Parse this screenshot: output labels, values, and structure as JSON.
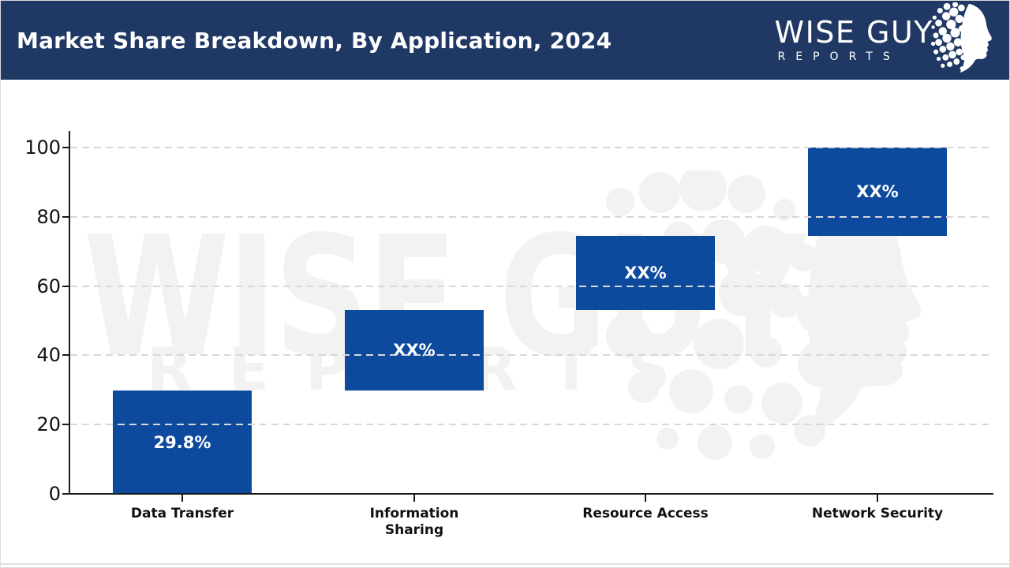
{
  "header": {
    "title": "Market Share Breakdown, By Application, 2024",
    "brand": {
      "name": "WISE GUY",
      "sub": "REPORTS"
    }
  },
  "watermark": {
    "brand": "WISE GUY",
    "sub": "REPORTS"
  },
  "chart_data": {
    "type": "bar",
    "subtype": "waterfall",
    "title": "Market Share Breakdown, By Application, 2024",
    "categories": [
      "Data Transfer",
      "Information Sharing",
      "Resource Access",
      "Network Security"
    ],
    "series": [
      {
        "name": "Market Share (%)",
        "segments": [
          {
            "category": "Data Transfer",
            "start": 0,
            "end": 29.8,
            "label": "29.8%"
          },
          {
            "category": "Information Sharing",
            "start": 29.8,
            "end": 53.0,
            "label": "XX%"
          },
          {
            "category": "Resource Access",
            "start": 53.0,
            "end": 74.4,
            "label": "XX%"
          },
          {
            "category": "Network Security",
            "start": 74.4,
            "end": 100,
            "label": "XX%"
          }
        ]
      }
    ],
    "xlabel": "",
    "ylabel": "",
    "ylim": [
      0,
      105
    ],
    "yticks": [
      0,
      20,
      40,
      60,
      80,
      100
    ],
    "grid": "horizontal-dashed",
    "legend": "none"
  },
  "colors": {
    "header_bg": "#1f3864",
    "bar": "#0d4a9e",
    "bar_label": "#ffffff",
    "grid": "#d8d8d8",
    "axis": "#1a1a1a",
    "watermark": "#f2f2f2",
    "page_border": "#dcdcdc"
  }
}
